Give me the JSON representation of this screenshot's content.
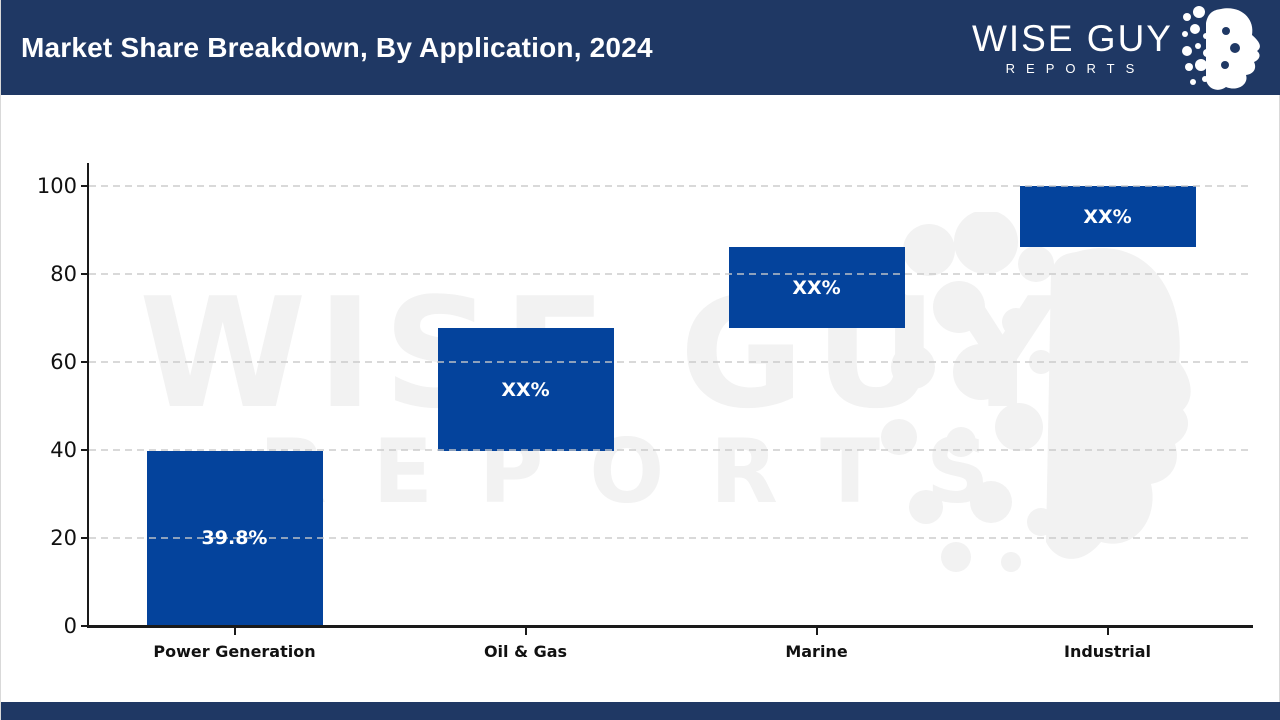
{
  "header": {
    "title": "Market Share Breakdown, By Application, 2024",
    "logo": {
      "line1": "WISE GUY",
      "line2": "REPORTS"
    }
  },
  "watermark": {
    "line1": "WISE GUY",
    "line2": "REPORTS"
  },
  "theme": {
    "header_bg": "#1f3864",
    "bar_color": "#04439c",
    "title_color": "#ffffff",
    "axis_color": "#1a1a1a",
    "grid_color": "#c9c9c9",
    "watermark_color": "#f2f2f2",
    "border_color": "#d9d9d9"
  },
  "chart_data": {
    "type": "bar",
    "subtype": "waterfall-stacked",
    "title": "Market Share Breakdown, By Application, 2024",
    "categories": [
      "Power Generation",
      "Oil & Gas",
      "Marine",
      "Industrial"
    ],
    "segments": [
      {
        "category": "Power Generation",
        "start": 0,
        "end": 39.8,
        "delta_estimated": 39.8,
        "label": "39.8%"
      },
      {
        "category": "Oil & Gas",
        "start": 39.8,
        "end": 67.7,
        "delta_estimated": 27.9,
        "label": "XX%"
      },
      {
        "category": "Marine",
        "start": 67.7,
        "end": 86.1,
        "delta_estimated": 18.4,
        "label": "XX%"
      },
      {
        "category": "Industrial",
        "start": 86.1,
        "end": 100,
        "delta_estimated": 13.9,
        "label": "XX%"
      }
    ],
    "xlabel": "",
    "ylabel": "",
    "ylim": [
      0,
      100
    ],
    "yticks": [
      0,
      20,
      40,
      60,
      80,
      100
    ],
    "grid": true,
    "grid_style": "dashed",
    "legend": false
  }
}
